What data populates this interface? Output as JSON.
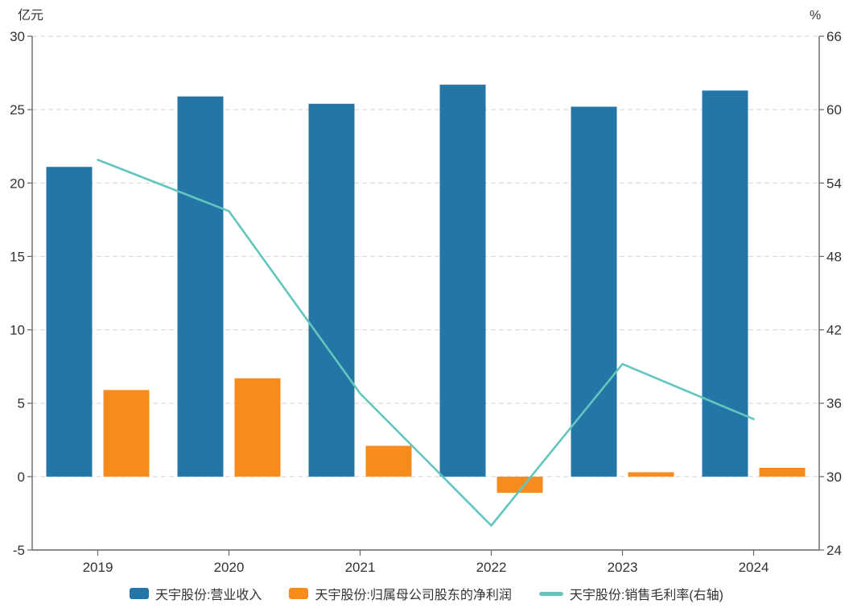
{
  "chart_data": {
    "type": "combo-bar-line",
    "categories": [
      "2019",
      "2020",
      "2021",
      "2022",
      "2023",
      "2024"
    ],
    "series": [
      {
        "name": "天宇股份:营业收入",
        "type": "bar",
        "axis": "left",
        "color": "#2476A6",
        "values": [
          21.1,
          25.9,
          25.4,
          26.7,
          25.2,
          26.3
        ]
      },
      {
        "name": "天宇股份:归属母公司股东的净利润",
        "type": "bar",
        "axis": "left",
        "color": "#F78C1E",
        "values": [
          5.9,
          6.7,
          2.1,
          -1.1,
          0.3,
          0.6
        ]
      },
      {
        "name": "天宇股份:销售毛利率(右轴)",
        "type": "line",
        "axis": "right",
        "color": "#62C6BE",
        "values": [
          55.9,
          51.7,
          36.8,
          26.0,
          39.2,
          34.7
        ]
      }
    ],
    "left_axis": {
      "label": "亿元",
      "min": -5,
      "max": 30,
      "step": 5
    },
    "right_axis": {
      "label": "%",
      "min": 24,
      "max": 66,
      "step": 6
    },
    "x_axis": {
      "labels": [
        "2019",
        "2020",
        "2021",
        "2022",
        "2023",
        "2024"
      ]
    },
    "grid": {
      "horizontal": "dashed",
      "color": "#DCDCDC"
    },
    "legend_position": "bottom",
    "colors": {
      "axis_line": "#666666",
      "tick_text": "#333333",
      "background": "#FFFFFF"
    }
  }
}
